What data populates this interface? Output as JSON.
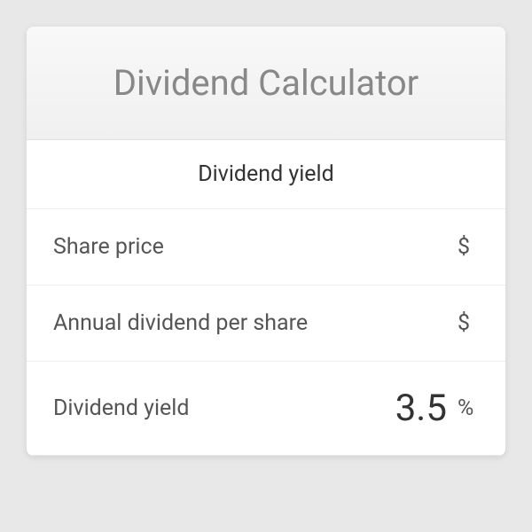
{
  "header": {
    "title": "Dividend Calculator"
  },
  "section": {
    "title": "Dividend yield"
  },
  "rows": [
    {
      "label": "Share price",
      "value": "",
      "unit": "$"
    },
    {
      "label": "Annual dividend per share",
      "value": "",
      "unit": "$"
    },
    {
      "label": "Dividend yield",
      "value": "3.5",
      "unit": "%"
    }
  ],
  "colors": {
    "background": "#e8e8e8",
    "card_bg": "#ffffff",
    "header_bg": "#f4f4f4",
    "title_color": "#888888",
    "text_color": "#555555",
    "value_color": "#333333",
    "border_color": "#eeeeee"
  }
}
